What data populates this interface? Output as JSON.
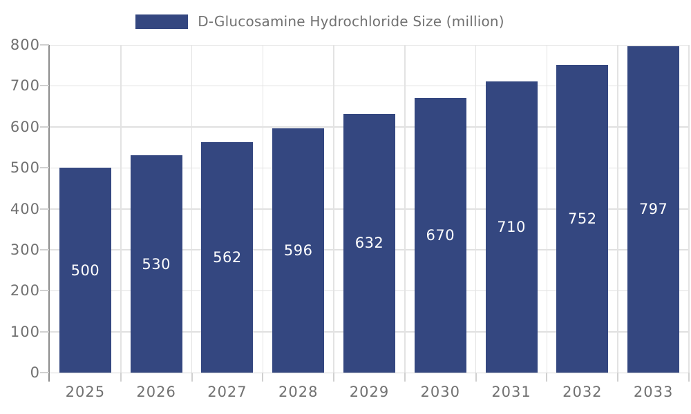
{
  "chart_data": {
    "type": "bar",
    "title": "",
    "legend": "D-Glucosamine Hydrochloride Size (million)",
    "legend_position": "top",
    "categories": [
      "2025",
      "2026",
      "2027",
      "2028",
      "2029",
      "2030",
      "2031",
      "2032",
      "2033"
    ],
    "values": [
      500,
      530,
      562,
      596,
      632,
      670,
      710,
      752,
      797
    ],
    "series": [
      {
        "name": "D-Glucosamine Hydrochloride Size (million)",
        "values": [
          500,
          530,
          562,
          596,
          632,
          670,
          710,
          752,
          797
        ]
      }
    ],
    "xlabel": "",
    "ylabel": "",
    "ylim": [
      0,
      800
    ],
    "ytick_step": 100,
    "yticks": [
      0,
      100,
      200,
      300,
      400,
      500,
      600,
      700,
      800
    ],
    "grid": true,
    "value_labels_shown": true,
    "colors": {
      "bar": "#344780",
      "value_label": "#ffffff",
      "axis_text": "#717171",
      "gridline": "#e0e0e0",
      "axis_line": "#8c8c8c"
    }
  }
}
